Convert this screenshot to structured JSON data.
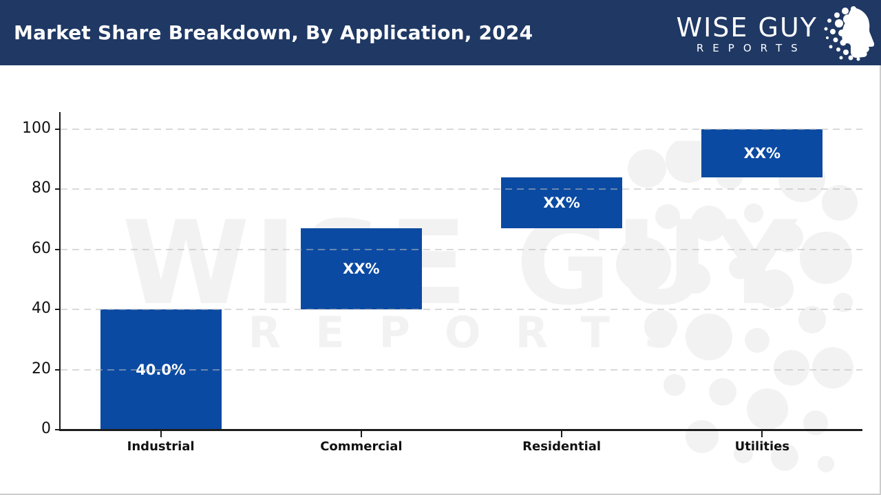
{
  "header": {
    "title": "Market Share Breakdown, By Application, 2024",
    "logo": {
      "line1": "WISE GUY",
      "line2": "REPORTS"
    }
  },
  "watermark": {
    "line1": "WISE GUY",
    "line2": "REPORTS"
  },
  "chart_data": {
    "type": "bar",
    "subtype": "waterfall-floating-bars",
    "title": "Market Share Breakdown, By Application, 2024",
    "categories": [
      "Industrial",
      "Commercial",
      "Residential",
      "Utilities"
    ],
    "segments": [
      {
        "category": "Industrial",
        "start": 0,
        "end": 40,
        "value": 40,
        "label": "40.0%"
      },
      {
        "category": "Commercial",
        "start": 40,
        "end": 67,
        "value": 27,
        "label": "XX%"
      },
      {
        "category": "Residential",
        "start": 67,
        "end": 84,
        "value": 17,
        "label": "XX%"
      },
      {
        "category": "Utilities",
        "start": 84,
        "end": 100,
        "value": 16,
        "label": "XX%"
      }
    ],
    "xlabel": "",
    "ylabel": "",
    "ylim": [
      0,
      100
    ],
    "yticks": [
      0,
      20,
      40,
      60,
      80,
      100
    ],
    "grid": "horizontal-dashed",
    "legend": "none"
  },
  "colors": {
    "header_bg": "#1f3864",
    "bar": "#0b4aa2",
    "bar_label": "#ffffff",
    "axis": "#1c1c1c",
    "grid": "#d9d9d9",
    "watermark": "#f2f2f2",
    "edge_border": "#cccccc"
  }
}
